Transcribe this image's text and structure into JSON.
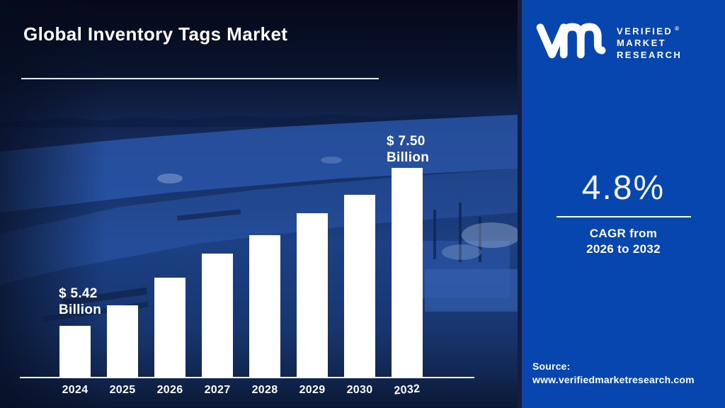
{
  "page": {
    "title": "Global Inventory Tags Market"
  },
  "brand": {
    "name_lines": [
      "VERIFIED",
      "MARKET",
      "RESEARCH"
    ],
    "registered": "®",
    "monogram": "vmr-monogram"
  },
  "stat": {
    "value": "4.8%",
    "caption_line1": "CAGR from",
    "caption_line2": "2026 to 2032"
  },
  "source": {
    "label": "Source:",
    "url": "www.verifiedmarketresearch.com"
  },
  "colors": {
    "right_panel": "#0745af",
    "divider": "#131c42",
    "bar": "#ffffff",
    "axis": "#ffffff",
    "text": "#ffffff",
    "photo_tint": "#1e4489"
  },
  "chart_data": {
    "type": "bar",
    "title": "Global Inventory Tags Market",
    "unit": "USD Billion",
    "categories": [
      "2024",
      "2025",
      "2026",
      "2027",
      "2028",
      "2029",
      "2030",
      "2032"
    ],
    "values_billion_usd": [
      5.42,
      null,
      null,
      null,
      null,
      null,
      null,
      7.5
    ],
    "bar_heights_relative": [
      0.244,
      0.342,
      0.475,
      0.59,
      0.678,
      0.783,
      0.871,
      1.0
    ],
    "annotations": [
      {
        "category": "2024",
        "line1": "$ 5.42",
        "line2": "Billion"
      },
      {
        "category": "2032",
        "line1": "$ 7.50",
        "line2": "Billion"
      }
    ],
    "xlabel": "",
    "ylabel": "",
    "gridlines": false,
    "legend": "none",
    "bar_color": "#ffffff",
    "axis_color": "#ffffff"
  }
}
